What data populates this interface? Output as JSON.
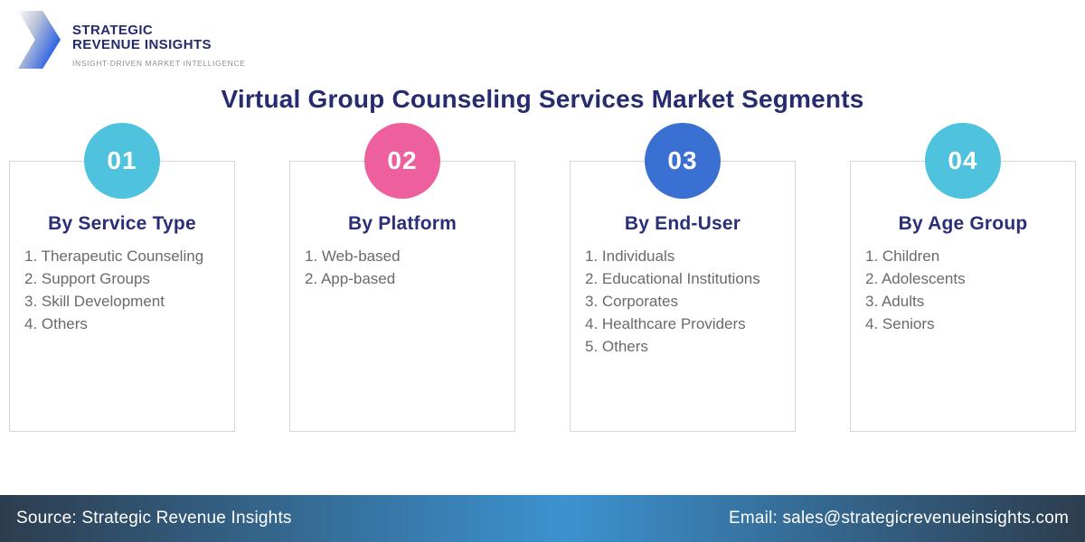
{
  "logo": {
    "brand_line1": "STRATEGIC",
    "brand_line2": "REVENUE INSIGHTS",
    "tagline": "INSIGHT-DRIVEN MARKET INTELLIGENCE",
    "colors": {
      "brand_navy": "#252a6e",
      "chevron_blue": "#2d63e2",
      "tagline_gray": "#8a8f99"
    }
  },
  "title": "Virtual Group Counseling Services Market Segments",
  "cards": [
    {
      "number": "01",
      "badge_color": "#4fc2de",
      "heading": "By Service Type",
      "items": [
        "1. Therapeutic Counseling",
        "2. Support Groups",
        "3. Skill Development",
        "4. Others"
      ]
    },
    {
      "number": "02",
      "badge_color": "#ee5f9e",
      "heading": "By Platform",
      "items": [
        "1. Web-based",
        "2. App-based"
      ]
    },
    {
      "number": "03",
      "badge_color": "#3a70d2",
      "heading": "By End-User",
      "items": [
        "1. Individuals",
        "2. Educational Institutions",
        "3. Corporates",
        "4. Healthcare Providers",
        "5. Others"
      ]
    },
    {
      "number": "04",
      "badge_color": "#4fc2de",
      "heading": "By Age Group",
      "items": [
        "1. Children",
        "2. Adolescents",
        "3. Adults",
        "4. Seniors"
      ]
    }
  ],
  "footer": {
    "source": "Source: Strategic Revenue Insights",
    "email": "Email: sales@strategicrevenueinsights.com",
    "gradient": {
      "edge": "#2d3d4e",
      "center": "#3c92d0"
    }
  },
  "colors": {
    "title_navy": "#272c70",
    "heading_navy": "#2b2f77",
    "item_gray": "#6a6a6a",
    "card_border": "#d6d6d6"
  }
}
